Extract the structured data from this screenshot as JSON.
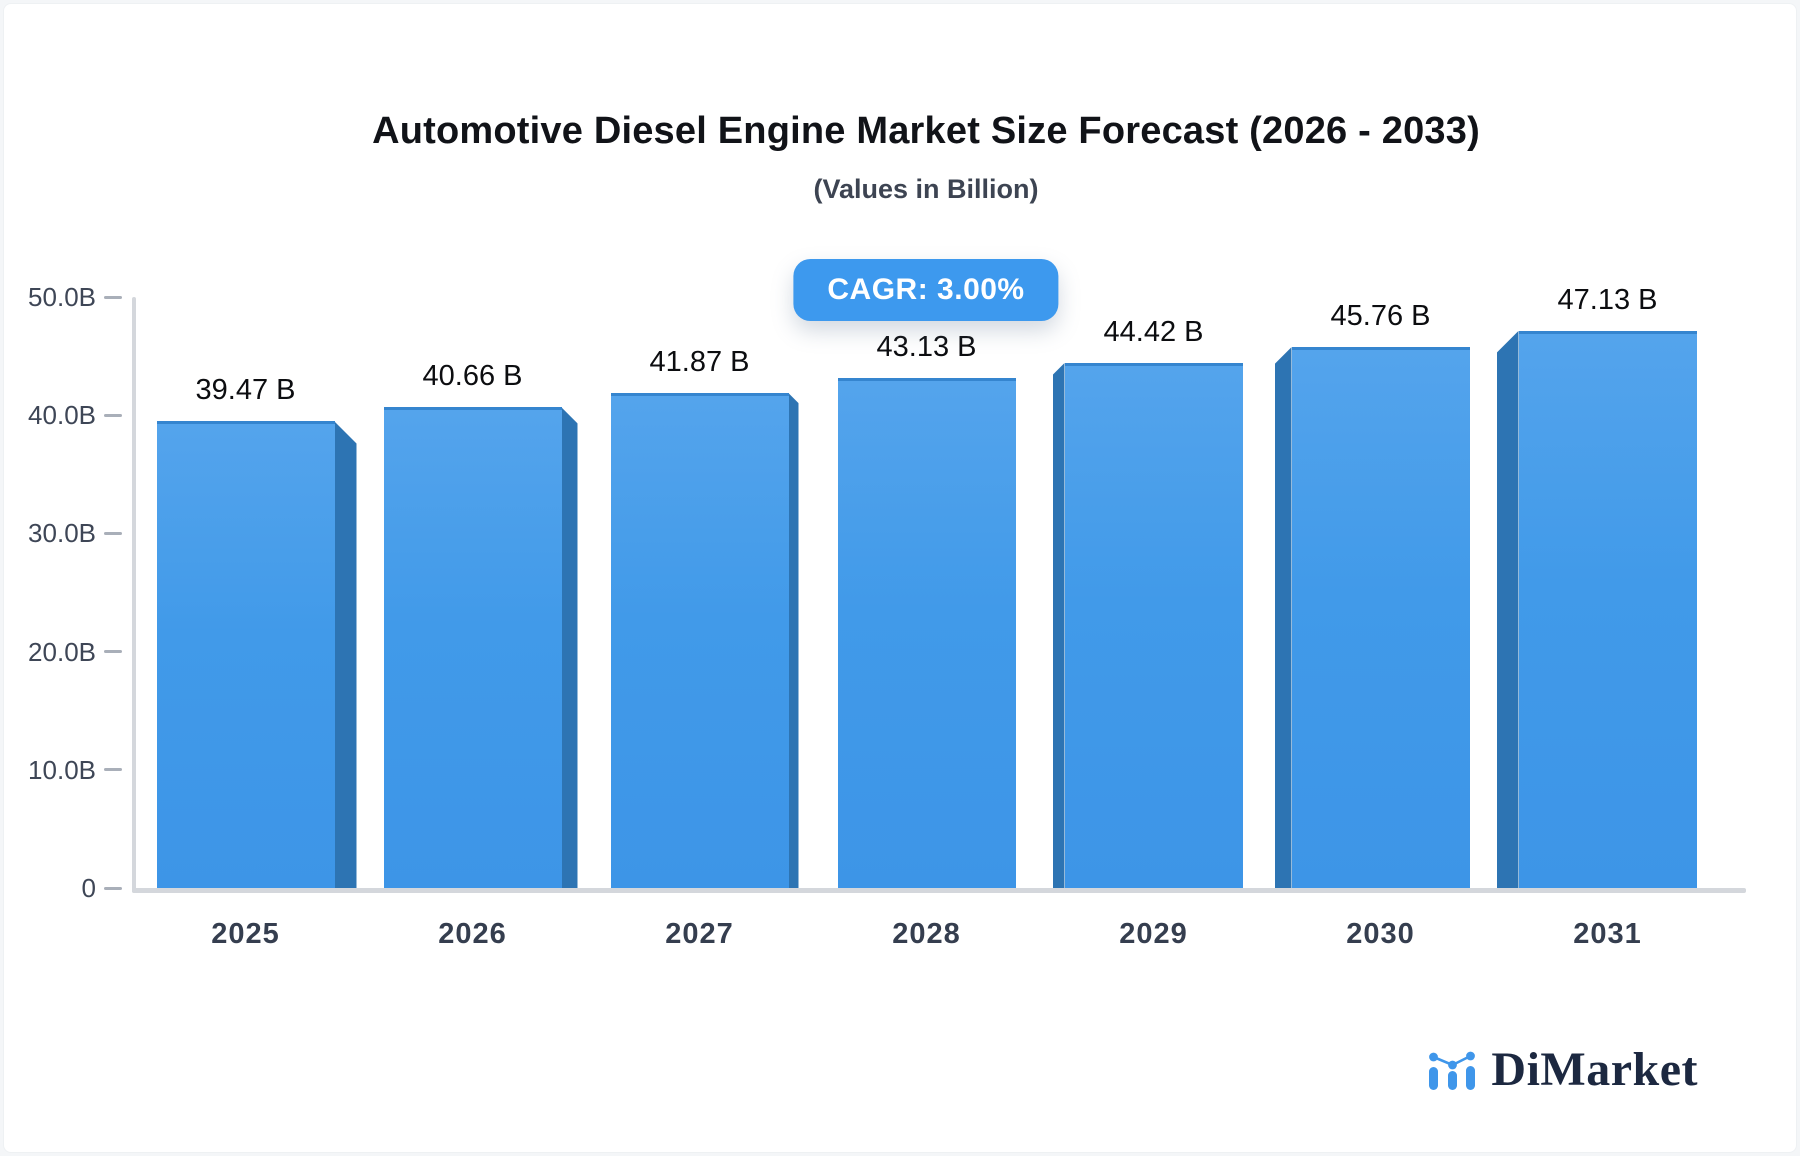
{
  "header": {
    "title": "Automotive Diesel Engine Market Size Forecast (2026 - 2033)",
    "subtitle": "(Values in Billion)",
    "badge": "CAGR: 3.00%"
  },
  "chart_data": {
    "type": "bar",
    "title": "Automotive Diesel Engine Market Size Forecast (2026 - 2033)",
    "subtitle": "(Values in Billion)",
    "annotation": "CAGR: 3.00%",
    "categories": [
      "2025",
      "2026",
      "2027",
      "2028",
      "2029",
      "2030",
      "2031"
    ],
    "values": [
      39.47,
      40.66,
      41.87,
      43.13,
      44.42,
      45.76,
      47.13
    ],
    "value_labels": [
      "39.47 B",
      "40.66 B",
      "41.87 B",
      "43.13 B",
      "44.42 B",
      "45.76 B",
      "47.13 B"
    ],
    "xlabel": "",
    "ylabel": "",
    "ylim": [
      0,
      50
    ],
    "ytick_values": [
      50,
      40,
      30,
      20,
      10,
      0
    ],
    "ytick_labels": [
      "50.0B",
      "40.0B",
      "30.0B",
      "20.0B",
      "10.0B",
      "0"
    ],
    "grid": false,
    "legend": null,
    "bar_color": "#3f9ae8",
    "bar_side_color": "#2d74b3",
    "badge_color": "#3d99ee"
  },
  "footer": {
    "brand": "DiMarket",
    "brand_icon": "bar-line-chart-icon",
    "brand_icon_color": "#3f96ea",
    "brand_text_color": "#1c2840"
  }
}
